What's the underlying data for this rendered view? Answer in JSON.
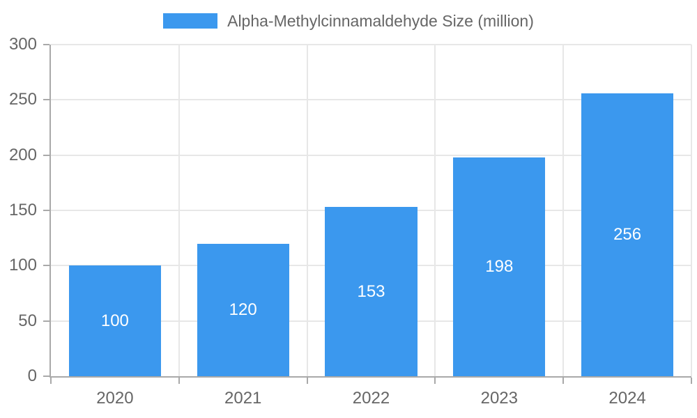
{
  "legend": {
    "position": "top",
    "swatch_color": "#3b98ee"
  },
  "chart_data": {
    "type": "bar",
    "title": "",
    "series_name": "Alpha-Methylcinnamaldehyde Size (million)",
    "categories": [
      "2020",
      "2021",
      "2022",
      "2023",
      "2024"
    ],
    "values": [
      100,
      120,
      153,
      198,
      256
    ],
    "xlabel": "",
    "ylabel": "",
    "ylim": [
      0,
      300
    ],
    "yticks": [
      0,
      50,
      100,
      150,
      200,
      250,
      300
    ],
    "grid": true,
    "legend_position": "top",
    "bar_color": "#3b98ee",
    "value_label_color": "#ffffff",
    "axis_text_color": "#666666",
    "grid_color": "#e7e7e7",
    "axis_line_color": "#a9a9a9"
  }
}
